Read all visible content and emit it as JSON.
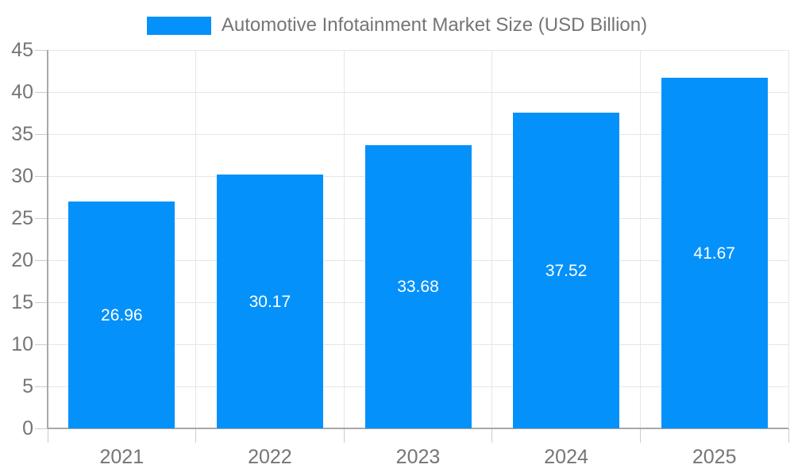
{
  "legend": {
    "label": "Automotive Infotainment Market Size (USD Billion)"
  },
  "colors": {
    "bar": "#0591fa",
    "text": "#757575",
    "value_text": "#ffffff",
    "grid": "#e6e6e6",
    "axis": "#a8a8a8",
    "tick": "#cccccc",
    "background": "#ffffff"
  },
  "chart_data": {
    "type": "bar",
    "title": "Automotive Infotainment Market Size (USD Billion)",
    "categories": [
      "2021",
      "2022",
      "2023",
      "2024",
      "2025"
    ],
    "values": [
      26.96,
      30.17,
      33.68,
      37.52,
      41.67
    ],
    "value_labels": [
      "26.96",
      "30.17",
      "33.68",
      "37.52",
      "41.67"
    ],
    "xlabel": "",
    "ylabel": "",
    "ylim": [
      0,
      45
    ],
    "yticks": [
      0,
      5,
      10,
      15,
      20,
      25,
      30,
      35,
      40,
      45
    ],
    "grid": true,
    "legend_position": "top",
    "value_label_position": "inside-center"
  }
}
